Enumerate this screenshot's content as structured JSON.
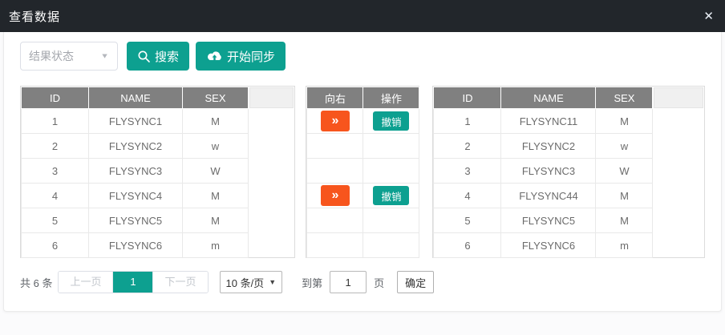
{
  "dialog": {
    "title": "查看数据",
    "close_glyph": "✕"
  },
  "toolbar": {
    "status_select": {
      "value": "结果状态",
      "caret_glyph": "▼"
    },
    "search_label": "搜索",
    "start_sync_label": "开始同步"
  },
  "tables": {
    "source": {
      "headers": [
        "ID",
        "NAME",
        "SEX"
      ],
      "rows": [
        {
          "id": "1",
          "name": "FLYSYNC1",
          "sex": "M"
        },
        {
          "id": "2",
          "name": "FLYSYNC2",
          "sex": "w"
        },
        {
          "id": "3",
          "name": "FLYSYNC3",
          "sex": "W"
        },
        {
          "id": "4",
          "name": "FLYSYNC4",
          "sex": "M"
        },
        {
          "id": "5",
          "name": "FLYSYNC5",
          "sex": "M"
        },
        {
          "id": "6",
          "name": "FLYSYNC6",
          "sex": "m"
        }
      ]
    },
    "actions": {
      "headers": [
        "向右",
        "操作"
      ],
      "move_label": "»",
      "undo_label": "撤销",
      "row_count": 6,
      "action_rows": [
        1,
        4
      ]
    },
    "target": {
      "headers": [
        "ID",
        "NAME",
        "SEX"
      ],
      "rows": [
        {
          "id": "1",
          "name": "FLYSYNC11",
          "sex": "M"
        },
        {
          "id": "2",
          "name": "FLYSYNC2",
          "sex": "w"
        },
        {
          "id": "3",
          "name": "FLYSYNC3",
          "sex": "W"
        },
        {
          "id": "4",
          "name": "FLYSYNC44",
          "sex": "M"
        },
        {
          "id": "5",
          "name": "FLYSYNC5",
          "sex": "M"
        },
        {
          "id": "6",
          "name": "FLYSYNC6",
          "sex": "m"
        }
      ]
    }
  },
  "pagination": {
    "total_text": "共 6 条",
    "prev_label": "上一页",
    "current_page": "1",
    "next_label": "下一页",
    "page_size": "10 条/页",
    "size_caret_glyph": "▼",
    "goto_label": "到第",
    "goto_value": "1",
    "page_unit": "页",
    "confirm_label": "确定"
  },
  "colors": {
    "accent": "#0da090",
    "move_orange": "#f7551d",
    "titlebar": "#22262b",
    "table_header": "#808080"
  }
}
